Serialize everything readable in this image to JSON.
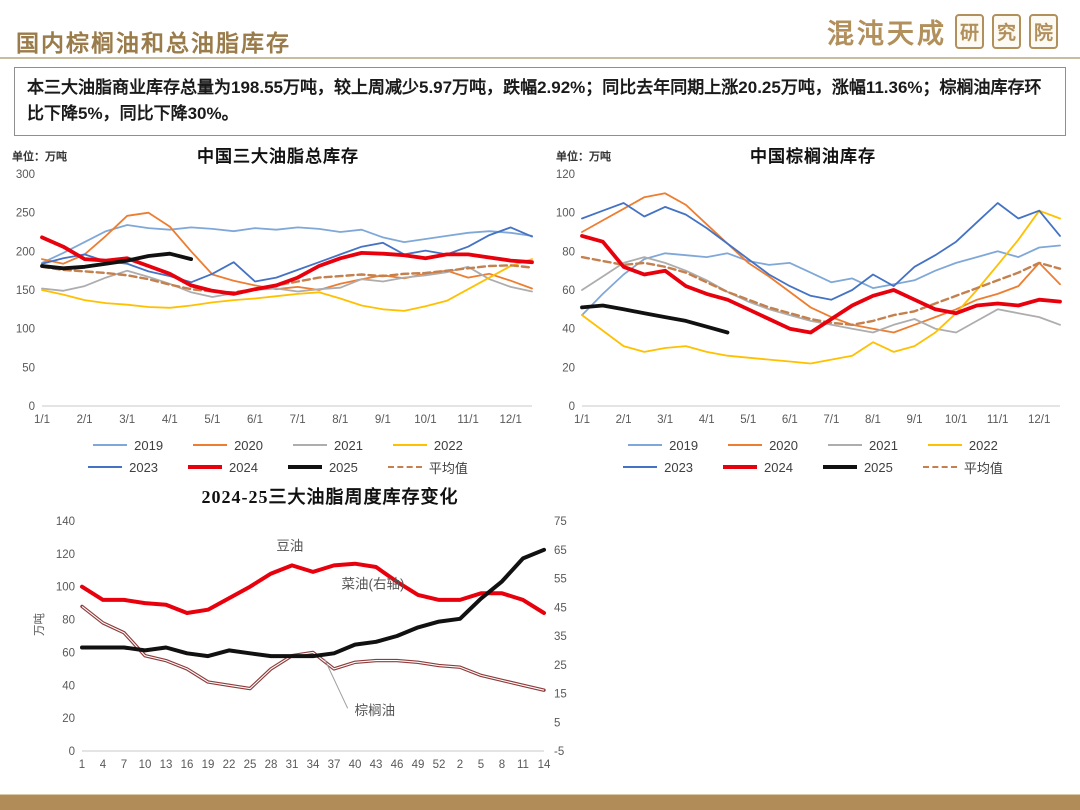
{
  "header": {
    "title": "国内棕榈油和总油脂库存",
    "logo_name": "混沌天成",
    "logo_suffix": [
      "研",
      "究",
      "院"
    ]
  },
  "summary": {
    "text": "本三大油脂商业库存总量为198.55万吨，较上周减少5.97万吨，跌幅2.92%；同比去年同期上涨20.25万吨，涨幅11.36%；棕榈油库存环比下降5%，同比下降30%。"
  },
  "colors": {
    "accent_bronze": "#9a7b4a",
    "footer_bar": "#b18b58",
    "red_2024": "#e8000d",
    "black_2025": "#111111",
    "average_dash": "#c4804e"
  },
  "chart_data": [
    {
      "id": "total",
      "type": "line",
      "title": "中国三大油脂总库存",
      "unit_label": "单位：万吨",
      "ylim": [
        0,
        300
      ],
      "yticks": [
        300,
        250,
        200,
        150,
        100,
        50,
        0
      ],
      "x_labels": [
        "1/1",
        "2/1",
        "3/1",
        "4/1",
        "5/1",
        "6/1",
        "7/1",
        "8/1",
        "9/1",
        "10/1",
        "11/1",
        "12/1"
      ],
      "x_count": 24,
      "x_label_step": 2,
      "grid": false,
      "legend_position": "bottom",
      "legend_rows": [
        [
          "2019",
          "2020",
          "2021",
          "2022"
        ],
        [
          "2023",
          "2024",
          "2025",
          "平均值"
        ]
      ],
      "series": [
        {
          "name": "2019",
          "color": "#7fa8d9",
          "width": 1.8,
          "values": [
            185,
            198,
            212,
            226,
            234,
            230,
            228,
            231,
            229,
            226,
            230,
            228,
            231,
            229,
            225,
            228,
            218,
            212,
            216,
            220,
            224,
            226,
            224,
            220
          ]
        },
        {
          "name": "2020",
          "color": "#ed7d31",
          "width": 1.8,
          "values": [
            190,
            184,
            196,
            220,
            246,
            250,
            232,
            200,
            170,
            162,
            156,
            151,
            154,
            150,
            158,
            164,
            169,
            165,
            171,
            175,
            166,
            171,
            162,
            152
          ]
        },
        {
          "name": "2021",
          "color": "#adadad",
          "width": 1.8,
          "values": [
            152,
            149,
            155,
            166,
            175,
            167,
            158,
            147,
            141,
            146,
            150,
            152,
            148,
            151,
            153,
            164,
            161,
            166,
            169,
            173,
            180,
            164,
            154,
            148
          ]
        },
        {
          "name": "2022",
          "color": "#ffc000",
          "width": 1.8,
          "values": [
            150,
            144,
            137,
            133,
            131,
            128,
            127,
            130,
            134,
            137,
            139,
            142,
            145,
            147,
            139,
            130,
            125,
            123,
            129,
            136,
            151,
            166,
            181,
            190
          ]
        },
        {
          "name": "2023",
          "color": "#4472c4",
          "width": 1.8,
          "values": [
            184,
            191,
            196,
            187,
            184,
            174,
            168,
            160,
            171,
            186,
            161,
            166,
            176,
            186,
            196,
            206,
            211,
            196,
            201,
            196,
            206,
            221,
            231,
            219
          ]
        },
        {
          "name": "平均值",
          "color": "#c4804e",
          "width": 2.4,
          "dash": "7 4",
          "z": 1,
          "values": [
            180,
            176,
            174,
            172,
            169,
            164,
            157,
            151,
            148,
            147,
            151,
            156,
            161,
            166,
            168,
            170,
            168,
            171,
            172,
            175,
            178,
            181,
            182,
            179
          ]
        },
        {
          "name": "2024",
          "color": "#e8000d",
          "width": 3.8,
          "z": 2,
          "values": [
            218,
            206,
            190,
            188,
            191,
            181,
            171,
            156,
            149,
            145,
            151,
            156,
            166,
            181,
            191,
            198,
            197,
            195,
            191,
            196,
            196,
            192,
            188,
            186
          ]
        },
        {
          "name": "2025",
          "color": "#111111",
          "width": 3.8,
          "z": 3,
          "values": [
            181,
            178,
            180,
            184,
            188,
            194,
            197,
            190
          ]
        }
      ]
    },
    {
      "id": "palm",
      "type": "line",
      "title": "中国棕榈油库存",
      "unit_label": "单位：万吨",
      "ylim": [
        0,
        120
      ],
      "yticks": [
        120,
        100,
        80,
        60,
        40,
        20,
        0
      ],
      "x_labels": [
        "1/1",
        "2/1",
        "3/1",
        "4/1",
        "5/1",
        "6/1",
        "7/1",
        "8/1",
        "9/1",
        "10/1",
        "11/1",
        "12/1"
      ],
      "x_count": 24,
      "x_label_step": 2,
      "grid": false,
      "legend_position": "bottom",
      "legend_rows": [
        [
          "2019",
          "2020",
          "2021",
          "2022"
        ],
        [
          "2023",
          "2024",
          "2025",
          "平均值"
        ]
      ],
      "series": [
        {
          "name": "2019",
          "color": "#7fa8d9",
          "width": 1.8,
          "values": [
            47,
            58,
            68,
            76,
            79,
            78,
            77,
            79,
            75,
            73,
            74,
            69,
            64,
            66,
            61,
            63,
            65,
            70,
            74,
            77,
            80,
            77,
            82,
            83
          ]
        },
        {
          "name": "2020",
          "color": "#ed7d31",
          "width": 1.8,
          "values": [
            90,
            96,
            102,
            108,
            110,
            104,
            94,
            84,
            74,
            67,
            59,
            51,
            46,
            42,
            40,
            38,
            42,
            46,
            50,
            55,
            58,
            62,
            74,
            63
          ]
        },
        {
          "name": "2021",
          "color": "#adadad",
          "width": 1.8,
          "values": [
            60,
            67,
            74,
            77,
            74,
            70,
            65,
            59,
            54,
            50,
            47,
            44,
            42,
            40,
            38,
            42,
            45,
            40,
            38,
            44,
            50,
            48,
            46,
            42
          ]
        },
        {
          "name": "2022",
          "color": "#ffc000",
          "width": 1.8,
          "values": [
            47,
            39,
            31,
            28,
            30,
            31,
            28,
            26,
            25,
            24,
            23,
            22,
            24,
            26,
            33,
            28,
            31,
            38,
            48,
            60,
            73,
            86,
            101,
            97
          ]
        },
        {
          "name": "2023",
          "color": "#4472c4",
          "width": 1.8,
          "values": [
            97,
            101,
            105,
            98,
            103,
            99,
            92,
            84,
            76,
            68,
            62,
            57,
            55,
            60,
            68,
            62,
            72,
            78,
            85,
            95,
            105,
            97,
            101,
            88
          ]
        },
        {
          "name": "平均值",
          "color": "#c4804e",
          "width": 2.4,
          "dash": "7 4",
          "z": 1,
          "values": [
            77,
            75,
            73,
            74,
            72,
            69,
            64,
            59,
            55,
            51,
            48,
            45,
            43,
            42,
            44,
            47,
            49,
            53,
            57,
            61,
            65,
            69,
            74,
            71
          ]
        },
        {
          "name": "2024",
          "color": "#e8000d",
          "width": 3.8,
          "z": 2,
          "values": [
            88,
            85,
            72,
            68,
            70,
            62,
            58,
            55,
            50,
            45,
            40,
            38,
            45,
            52,
            57,
            60,
            55,
            50,
            48,
            52,
            53,
            52,
            55,
            54
          ]
        },
        {
          "name": "2025",
          "color": "#111111",
          "width": 3.8,
          "z": 3,
          "values": [
            51,
            52,
            50,
            48,
            46,
            44,
            41,
            38
          ]
        }
      ]
    },
    {
      "id": "weekly",
      "type": "line",
      "title": "2024-25三大油脂周度库存变化",
      "ylabel_left": "万吨",
      "ylim_left": [
        0,
        140
      ],
      "yticks_left": [
        140,
        120,
        100,
        80,
        60,
        40,
        20,
        0
      ],
      "ylim_right": [
        -5,
        75
      ],
      "yticks_right": [
        75,
        65,
        55,
        45,
        35,
        25,
        15,
        5,
        -5
      ],
      "x_labels": [
        "1",
        "4",
        "7",
        "10",
        "13",
        "16",
        "19",
        "22",
        "25",
        "28",
        "31",
        "34",
        "37",
        "40",
        "43",
        "46",
        "49",
        "52",
        "2",
        "5",
        "8",
        "11",
        "14"
      ],
      "x_count": 23,
      "grid": false,
      "series": [
        {
          "name": "豆油",
          "axis": "left",
          "color": "#e8000d",
          "width": 4,
          "values": [
            100,
            92,
            92,
            90,
            89,
            84,
            86,
            93,
            100,
            108,
            113,
            109,
            113,
            114,
            112,
            103,
            95,
            92,
            92,
            96,
            96,
            92,
            84
          ]
        },
        {
          "name": "棕榈油",
          "axis": "left",
          "color": "#8e3b3b",
          "width": 3.4,
          "style": "double",
          "values": [
            88,
            78,
            72,
            58,
            55,
            50,
            42,
            40,
            38,
            50,
            58,
            60,
            50,
            54,
            55,
            55,
            54,
            52,
            51,
            46,
            43,
            40,
            37
          ]
        },
        {
          "name": "菜油(右轴)",
          "axis": "right",
          "color": "#111111",
          "width": 4,
          "values": [
            31,
            31,
            31,
            30,
            31,
            29,
            28,
            30,
            29,
            28,
            28,
            28,
            29,
            32,
            33,
            35,
            38,
            40,
            41,
            48,
            54,
            62,
            65
          ]
        }
      ],
      "annotations": [
        {
          "text": "豆油",
          "fx": 0.45,
          "v": 122,
          "anchor": "middle"
        },
        {
          "text": "菜油(右轴)",
          "fx": 0.63,
          "v": 99,
          "anchor": "middle"
        },
        {
          "text": "棕榈油",
          "fx": 0.59,
          "v": 22,
          "anchor": "start",
          "leader": [
            0.525,
            56,
            0.575,
            26
          ]
        }
      ]
    }
  ]
}
